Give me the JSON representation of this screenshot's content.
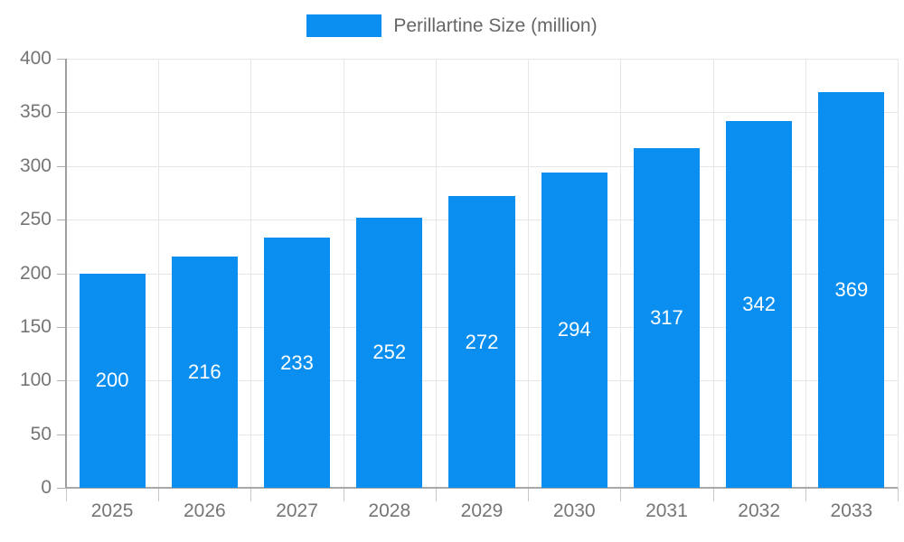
{
  "chart_data": {
    "type": "bar",
    "title": "Perillartine Size (million)",
    "categories": [
      "2025",
      "2026",
      "2027",
      "2028",
      "2029",
      "2030",
      "2031",
      "2032",
      "2033"
    ],
    "values": [
      200,
      216,
      233,
      252,
      272,
      294,
      317,
      342,
      369
    ],
    "xlabel": "",
    "ylabel": "",
    "ylim": [
      0,
      400
    ],
    "ytick_step": 50,
    "yticks": [
      0,
      50,
      100,
      150,
      200,
      250,
      300,
      350,
      400
    ],
    "grid": true,
    "legend_position": "top",
    "data_labels": "inside-center",
    "colors": {
      "bar": "#0a8ff0",
      "bar_label": "#ffffff",
      "axis_label": "#757575",
      "legend_text": "#666666",
      "gridline": "#e6e6e6",
      "axis_line": "#9e9e9e"
    }
  },
  "legend": {
    "label": "Perillartine Size (million)"
  }
}
